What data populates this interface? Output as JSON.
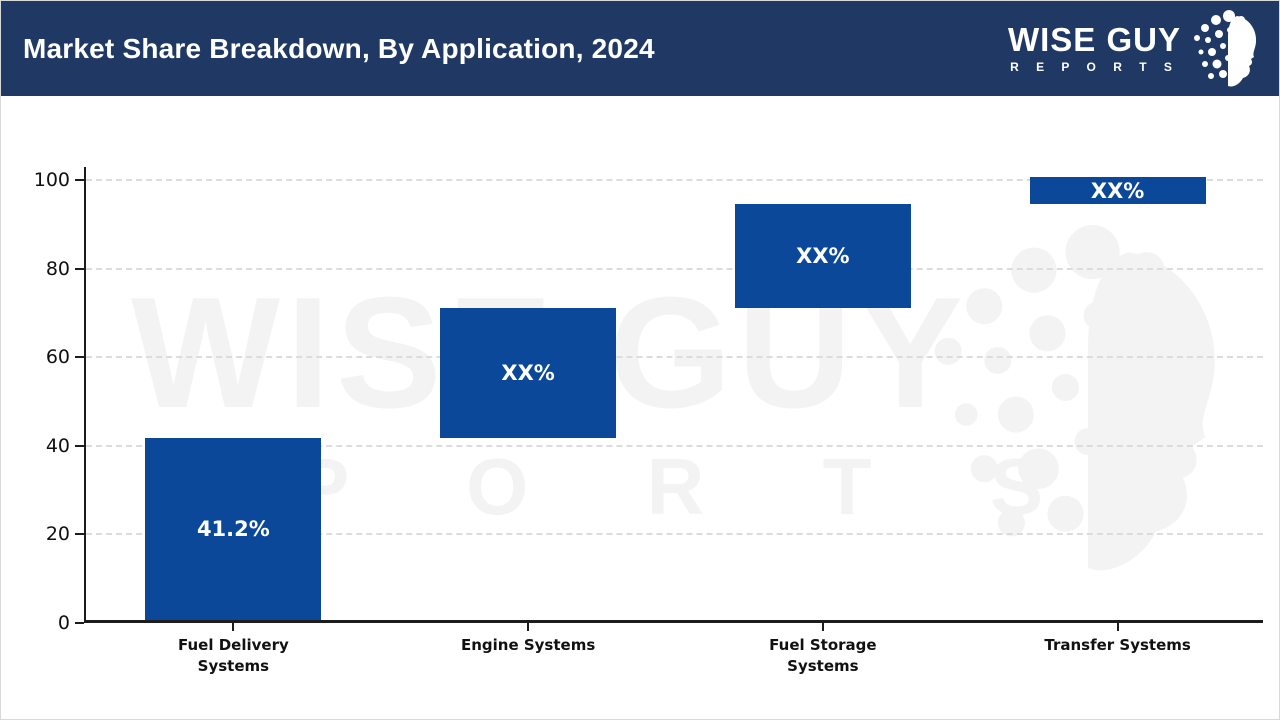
{
  "header": {
    "title": "Market Share Breakdown, By Application, 2024",
    "background": "#1f3864",
    "brand": {
      "name": "WISE GUY",
      "subname": "R E P O R T S",
      "logo_icon": "dotted-face-profile"
    }
  },
  "watermark": {
    "line1": "WISE GUY",
    "line2": "P O R T S",
    "color": "#f3f3f3"
  },
  "chart_data": {
    "type": "bar",
    "subtype": "waterfall",
    "title": "Market Share Breakdown, By Application, 2024",
    "categories": [
      "Fuel Delivery Systems",
      "Engine Systems",
      "Fuel Storage Systems",
      "Transfer Systems"
    ],
    "segments": [
      {
        "category": "Fuel Delivery Systems",
        "start": 0,
        "end": 41.2,
        "label": "41.2%"
      },
      {
        "category": "Engine Systems",
        "start": 41.2,
        "end": 70.5,
        "label": "XX%"
      },
      {
        "category": "Fuel Storage Systems",
        "start": 70.5,
        "end": 94.0,
        "label": "XX%"
      },
      {
        "category": "Transfer Systems",
        "start": 94.0,
        "end": 100,
        "label": "XX%"
      }
    ],
    "yticks": [
      0,
      20,
      40,
      60,
      80,
      100
    ],
    "ylim": [
      0,
      103
    ],
    "xlabel": "",
    "ylabel": "",
    "bar_color": "#0c4899",
    "bar_label_color": "#ffffff",
    "grid": "horizontal-dashed",
    "legend": "none"
  }
}
